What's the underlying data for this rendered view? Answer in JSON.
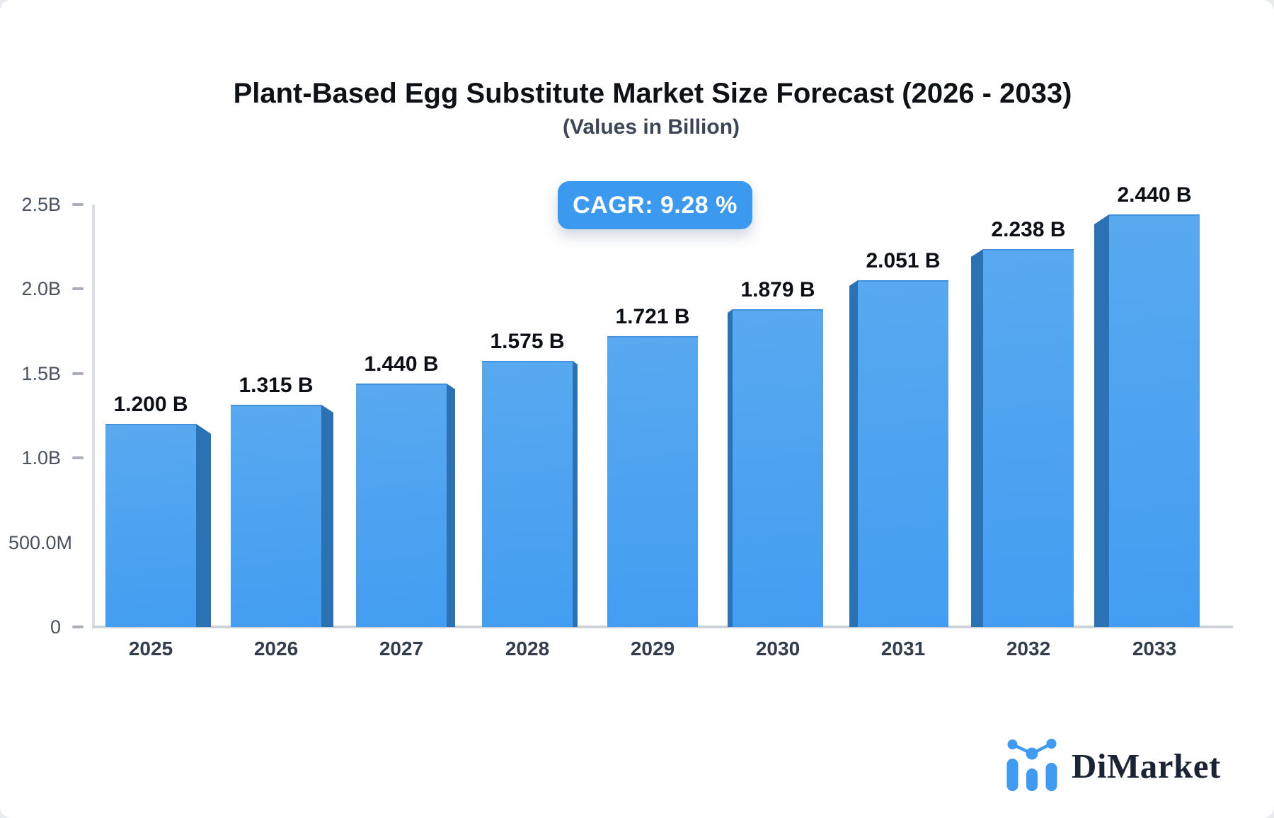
{
  "page": {
    "background": "#e7eaee",
    "card_background": "#ffffff"
  },
  "header": {
    "title": "Plant-Based Egg Substitute Market Size Forecast (2026 - 2033)",
    "subtitle": "(Values in Billion)",
    "badge": {
      "label": "CAGR: 9.28 %",
      "background": "#3c99f0",
      "text_color": "#ffffff"
    }
  },
  "chart_data": {
    "type": "bar",
    "title": "Plant-Based Egg Substitute Market Size Forecast (2026 - 2033)",
    "subtitle": "(Values in Billion)",
    "categories": [
      "2025",
      "2026",
      "2027",
      "2028",
      "2029",
      "2030",
      "2031",
      "2032",
      "2033"
    ],
    "values": [
      1.2,
      1.315,
      1.44,
      1.575,
      1.721,
      1.879,
      2.051,
      2.238,
      2.44
    ],
    "value_labels": [
      "1.200 B",
      "1.315 B",
      "1.440 B",
      "1.575 B",
      "1.721 B",
      "1.879 B",
      "2.051 B",
      "2.238 B",
      "2.440 B"
    ],
    "xlabel": "",
    "ylabel": "",
    "ylim": [
      0,
      2.5
    ],
    "y_ticks": [
      {
        "label": "2.5B",
        "value": 2.5,
        "tick": true
      },
      {
        "label": "2.0B",
        "value": 2.0,
        "tick": true
      },
      {
        "label": "1.5B",
        "value": 1.5,
        "tick": true
      },
      {
        "label": "1.0B",
        "value": 1.0,
        "tick": true
      },
      {
        "label": "500.0M",
        "value": 0.5,
        "tick": false
      },
      {
        "label": "0",
        "value": 0.0,
        "tick": true
      }
    ],
    "grid": false,
    "legend": "none",
    "bar_style": {
      "face_color_top": "#58a9ef",
      "face_color_bottom": "#439df2",
      "side_color": "#2b72b5",
      "effect": "3d-extrusion-toward-center"
    }
  },
  "footer": {
    "brand": "DiMarket",
    "logo_icon": "mini-bar-line-chart-icon",
    "logo_color": "#3f9bf2"
  }
}
